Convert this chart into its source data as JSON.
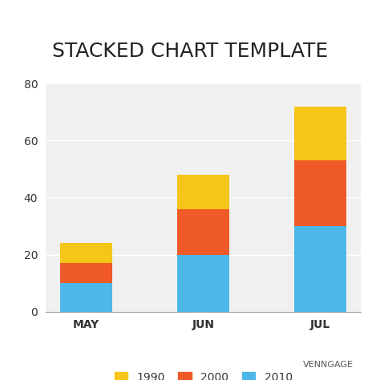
{
  "title": "STACKED CHART TEMPLATE",
  "categories": [
    "MAY",
    "JUN",
    "JUL"
  ],
  "series": {
    "2010": [
      10,
      20,
      30
    ],
    "2000": [
      7,
      16,
      23
    ],
    "1990": [
      7,
      12,
      19
    ]
  },
  "colors": {
    "2010": "#4DB8E8",
    "2000": "#F05A28",
    "1990": "#F5C518"
  },
  "ylim": [
    0,
    80
  ],
  "yticks": [
    0,
    20,
    40,
    60,
    80
  ],
  "background_color": "#F0F0F0",
  "chart_bg": "#F0F0F0",
  "outer_bg": "#FFFFFF",
  "title_fontsize": 18,
  "tick_fontsize": 10,
  "legend_fontsize": 10,
  "bar_width": 0.45,
  "legend_labels": [
    "1990",
    "2000",
    "2010"
  ]
}
